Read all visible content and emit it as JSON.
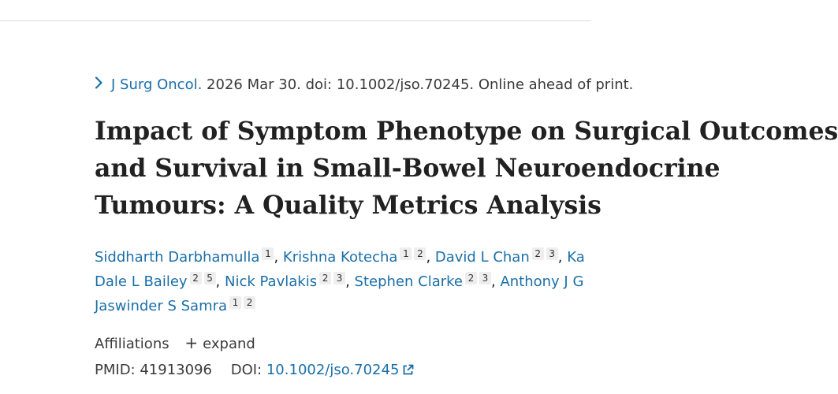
{
  "citation": {
    "journal": "J Surg Oncol.",
    "details": "2026 Mar 30. doi: 10.1002/jso.70245. Online ahead of print."
  },
  "title": {
    "lines": [
      "Impact of Symptom Phenotype on Surgical Outcomes",
      "and Survival in Small-Bowel Neuroendocrine",
      "Tumours: A Quality Metrics Analysis"
    ]
  },
  "authors": {
    "lines": [
      [
        {
          "name": "Siddharth Darbhamulla",
          "aff": [
            "1"
          ]
        },
        {
          "name": "Krishna Kotecha",
          "aff": [
            "1",
            "2"
          ]
        },
        {
          "name": "David L Chan",
          "aff": [
            "2",
            "3"
          ]
        },
        {
          "name": "Ka",
          "aff": []
        }
      ],
      [
        {
          "name": "Dale L Bailey",
          "aff": [
            "2",
            "5"
          ]
        },
        {
          "name": "Nick Pavlakis",
          "aff": [
            "2",
            "3"
          ]
        },
        {
          "name": "Stephen Clarke",
          "aff": [
            "2",
            "3"
          ]
        },
        {
          "name": "Anthony J G",
          "aff": []
        }
      ],
      [
        {
          "name": "Jaswinder S Samra",
          "aff": [
            "1",
            "2"
          ]
        }
      ]
    ]
  },
  "affiliations": {
    "label": "Affiliations",
    "expand_label": "expand"
  },
  "identifiers": {
    "pmid_label": "PMID:",
    "pmid": "41913096",
    "doi_label": "DOI:",
    "doi": "10.1002/jso.70245"
  },
  "colors": {
    "link": "#1a6fa8",
    "text": "#212121"
  },
  "icons": {
    "chevron": "chevron-right-icon",
    "plus": "plus-icon",
    "external": "external-link-icon"
  }
}
